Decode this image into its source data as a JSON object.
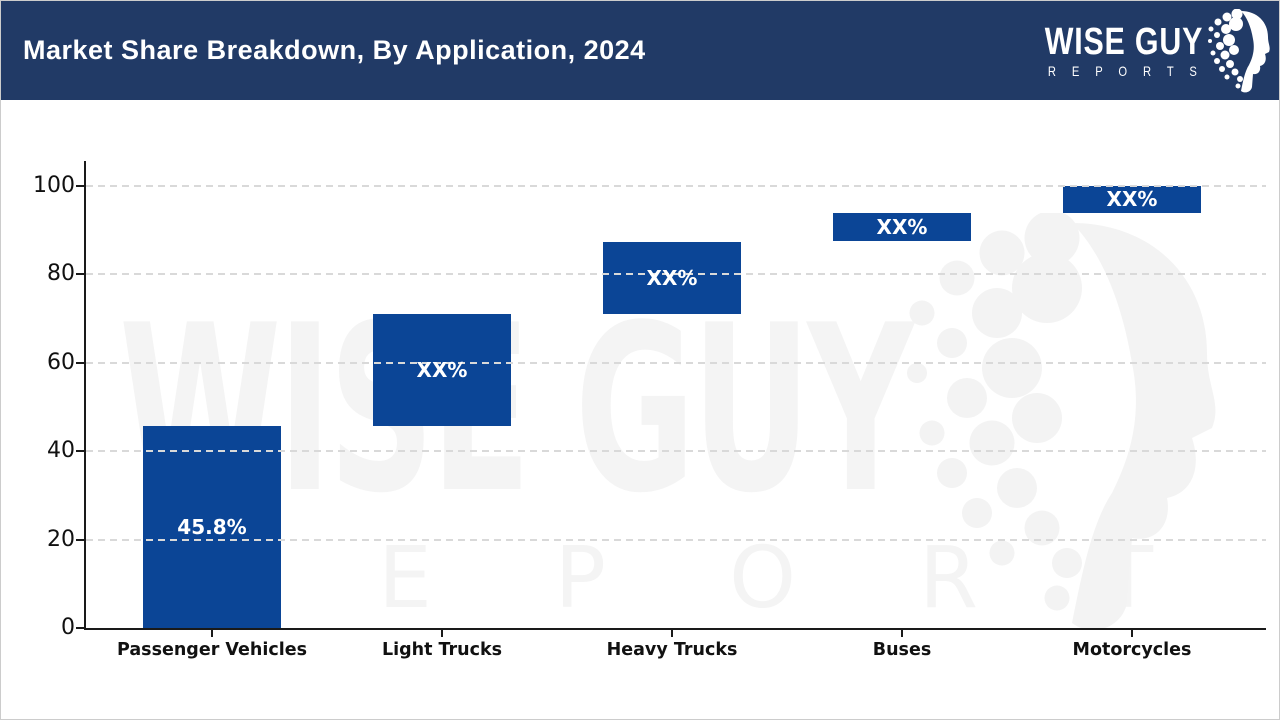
{
  "header": {
    "title": "Market Share Breakdown, By Application, 2024",
    "logo": {
      "name": "WISE GUY",
      "sub": "R E P O R T S"
    }
  },
  "watermark": {
    "name": "WISE GUY",
    "sub": "R E P O R T S"
  },
  "colors": {
    "header_bg": "#213A66",
    "bar": "#0B4596",
    "bar_label": "#FFFFFF",
    "axis": "#1A1A1A",
    "grid": "#D9D9D9",
    "watermark": "#F3F3F3"
  },
  "chart_data": {
    "type": "bar",
    "variant": "floating-waterfall",
    "title": "Market Share Breakdown, By Application, 2024",
    "xlabel": "",
    "ylabel": "",
    "categories": [
      "Passenger Vehicles",
      "Light Trucks",
      "Heavy Trucks",
      "Buses",
      "Motorcycles"
    ],
    "segments": [
      {
        "category": "Passenger Vehicles",
        "start": 0,
        "end": 45.8,
        "label": "45.8%"
      },
      {
        "category": "Light Trucks",
        "start": 45.8,
        "end": 71.0,
        "label": "XX%"
      },
      {
        "category": "Heavy Trucks",
        "start": 71.0,
        "end": 87.3,
        "label": "XX%"
      },
      {
        "category": "Buses",
        "start": 87.6,
        "end": 93.9,
        "label": "XX%"
      },
      {
        "category": "Motorcycles",
        "start": 93.9,
        "end": 100.0,
        "label": "XX%"
      }
    ],
    "yticks": [
      0,
      20,
      40,
      60,
      80,
      100
    ],
    "ylim": [
      0,
      105
    ],
    "grid": "horizontal-dashed",
    "legend": "none"
  }
}
